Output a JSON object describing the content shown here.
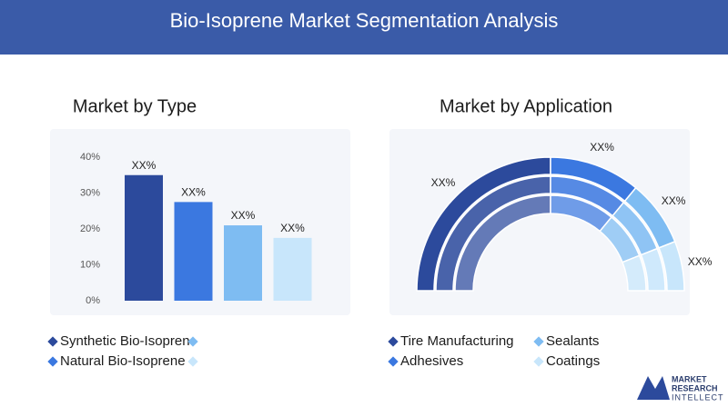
{
  "header": {
    "title": "Bio-Isoprene Market Segmentation Analysis"
  },
  "chart_data": [
    {
      "type": "bar",
      "title": "Market by Type",
      "categories": [
        "Synthetic Bio-Isopren",
        "Natural Bio-Isoprene",
        null,
        null
      ],
      "values": [
        35,
        27.5,
        21,
        17.5
      ],
      "value_labels": [
        "XX%",
        "XX%",
        "XX%",
        "XX%"
      ],
      "colors": [
        "#2c4a9c",
        "#3b78e0",
        "#7ebcf2",
        "#c8e6fb"
      ],
      "ylim": [
        0,
        40
      ],
      "yticks": [
        {
          "value": 0,
          "label": "0%"
        },
        {
          "value": 10,
          "label": "10%"
        },
        {
          "value": 20,
          "label": "20%"
        },
        {
          "value": 30,
          "label": "30%"
        },
        {
          "value": 40,
          "label": "40%"
        }
      ]
    },
    {
      "type": "semi-donut",
      "title": "Market by Application",
      "categories": [
        "Tire Manufacturing",
        "Adhesives",
        "Sealants",
        "Coatings"
      ],
      "values": [
        50,
        22,
        16,
        12
      ],
      "value_labels": [
        "XX%",
        "XX%",
        "XX%",
        "XX%"
      ],
      "colors": [
        "#2c4a9c",
        "#3b78e0",
        "#7ebcf2",
        "#c8e6fb"
      ]
    }
  ],
  "logo": {
    "lines": [
      "MARKET",
      "RESEARCH",
      "INTELLECT"
    ]
  }
}
